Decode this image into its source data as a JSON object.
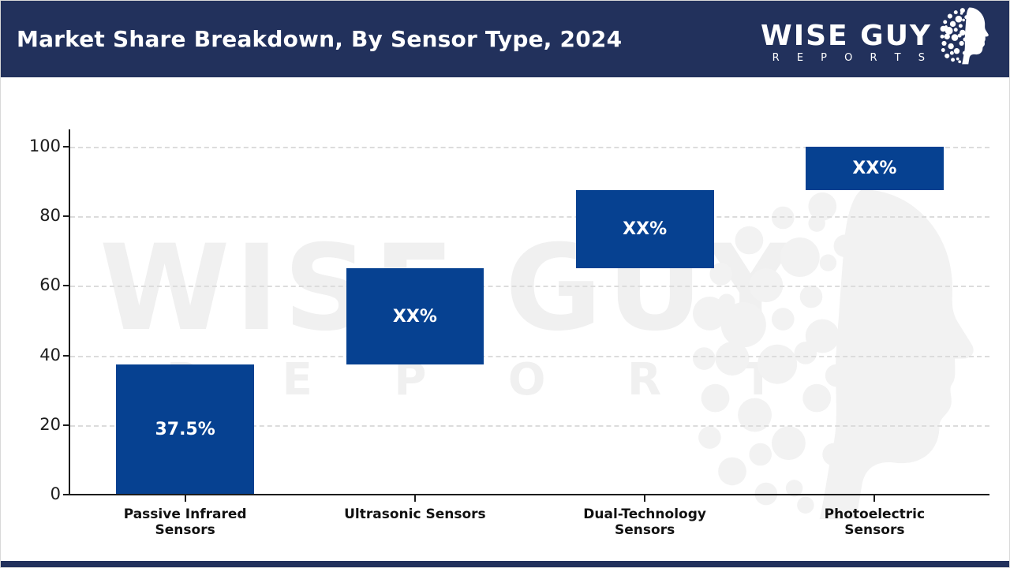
{
  "header": {
    "title": "Market Share Breakdown, By Sensor Type, 2024",
    "logo": {
      "line1": "WISE GUY",
      "line2": "R E P O R T S"
    }
  },
  "watermark": {
    "line1": "WISE GUY",
    "line2": "R E P O R T S"
  },
  "chart_data": {
    "type": "bar",
    "subtype": "waterfall",
    "title": "Market Share Breakdown, By Sensor Type, 2024",
    "categories": [
      "Passive Infrared\nSensors",
      "Ultrasonic Sensors",
      "Dual-Technology\nSensors",
      "Photoelectric\nSensors"
    ],
    "segments": [
      {
        "category": "Passive Infrared Sensors",
        "start": 0,
        "end": 37.5,
        "label": "37.5%"
      },
      {
        "category": "Ultrasonic Sensors",
        "start": 37.5,
        "end": 65,
        "label": "XX%"
      },
      {
        "category": "Dual-Technology Sensors",
        "start": 65,
        "end": 87.5,
        "label": "XX%"
      },
      {
        "category": "Photoelectric Sensors",
        "start": 87.5,
        "end": 100,
        "label": "XX%"
      }
    ],
    "yticks": [
      0,
      20,
      40,
      60,
      80,
      100
    ],
    "ylim": [
      0,
      105
    ],
    "xlabel": "",
    "ylabel": "",
    "bar_color": "#064191",
    "bar_label_color": "#ffffff",
    "grid": "horizontal-dashed",
    "legend": "none"
  }
}
